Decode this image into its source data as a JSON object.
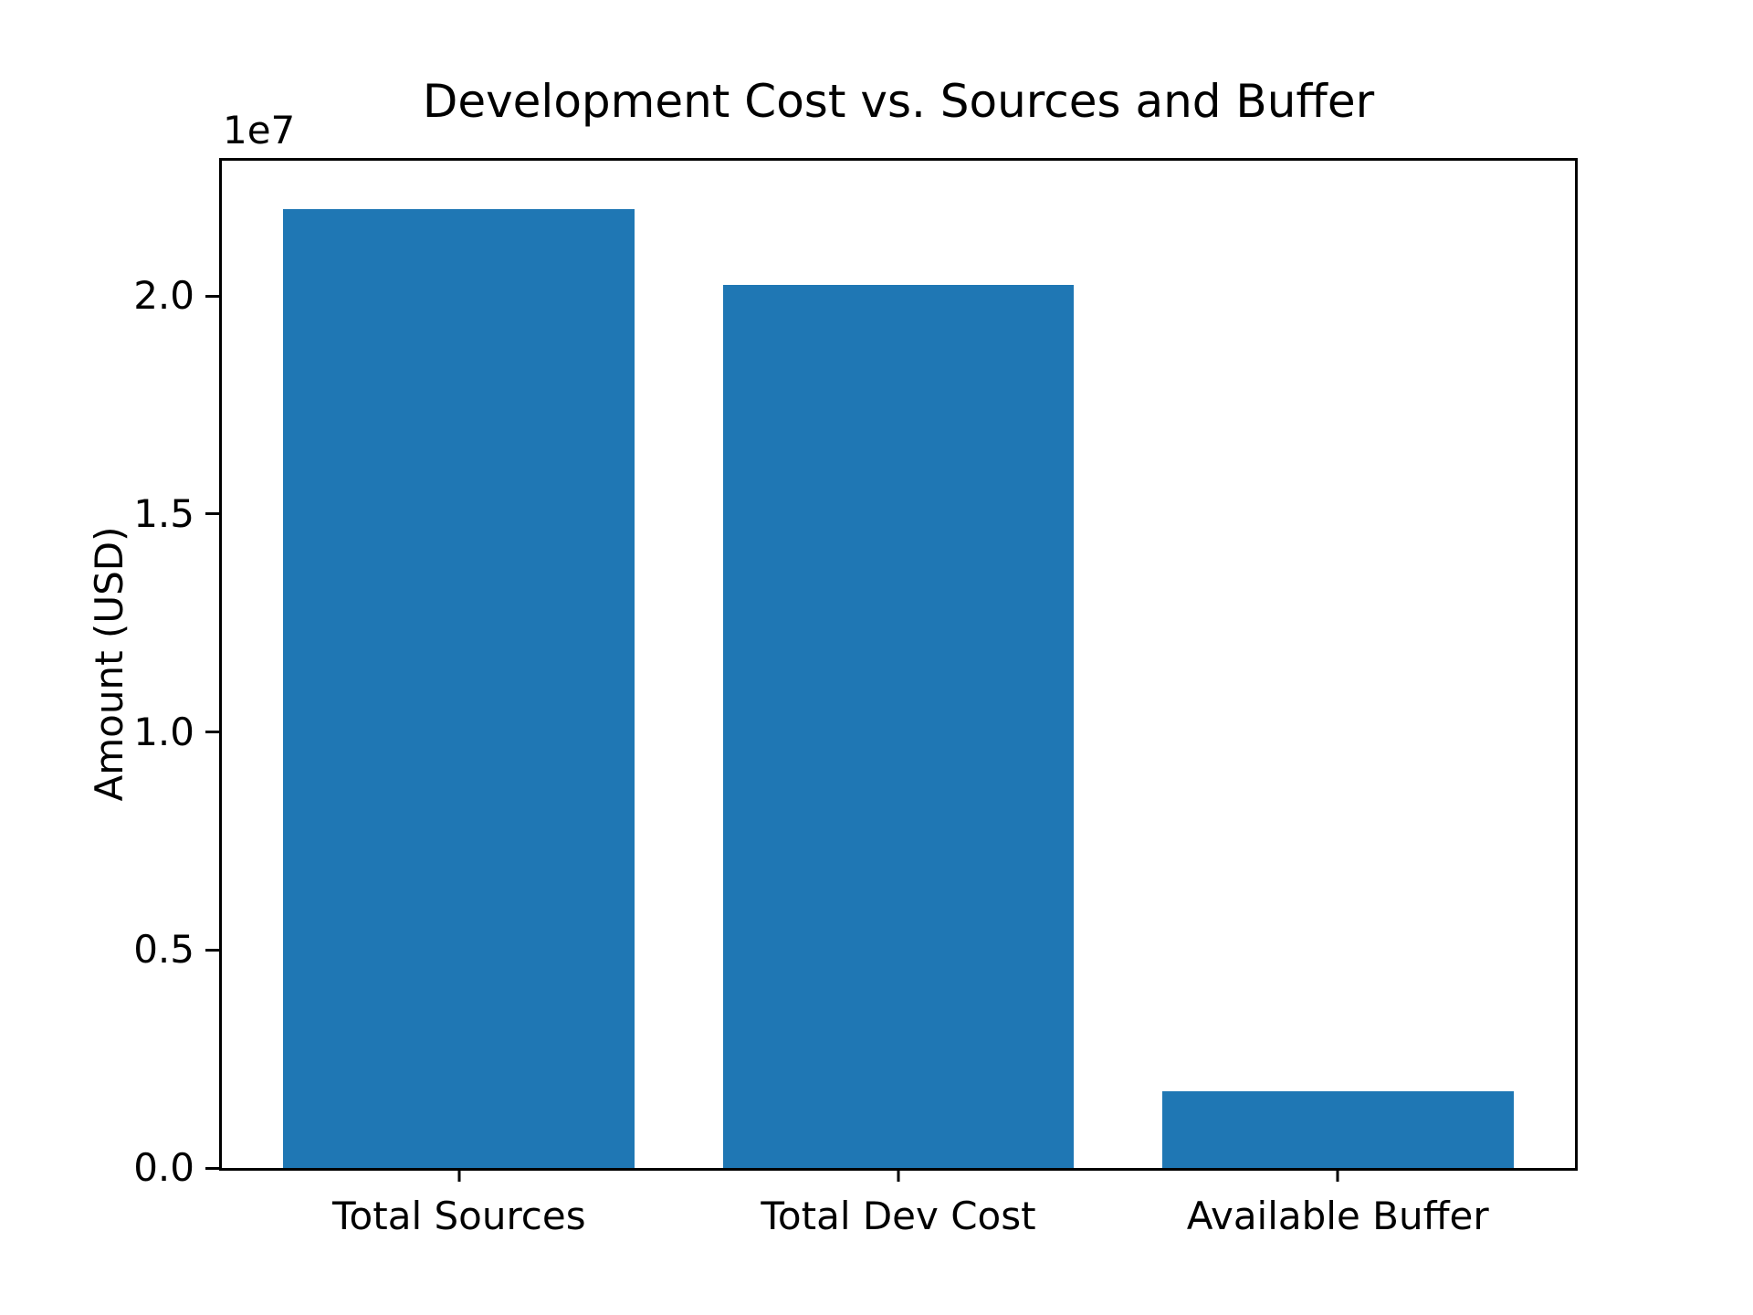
{
  "chart_data": {
    "type": "bar",
    "title": "Development Cost vs. Sources and Buffer",
    "ylabel": "Amount (USD)",
    "xlabel": "",
    "offset_text": "1e7",
    "categories": [
      "Total Sources",
      "Total Dev Cost",
      "Available Buffer"
    ],
    "values": [
      22000000,
      20250000,
      1750000
    ],
    "ylim": [
      0,
      23100000
    ],
    "yticks": [
      0,
      5000000,
      10000000,
      15000000,
      20000000
    ],
    "ytick_labels": [
      "0.0",
      "0.5",
      "1.0",
      "1.5",
      "2.0"
    ],
    "bar_color": "#1f77b4",
    "text_color": "#000000",
    "background_color": "#ffffff",
    "grid": false,
    "legend": null,
    "bar_width_units": 0.8,
    "x_margin_units": 0.54
  }
}
